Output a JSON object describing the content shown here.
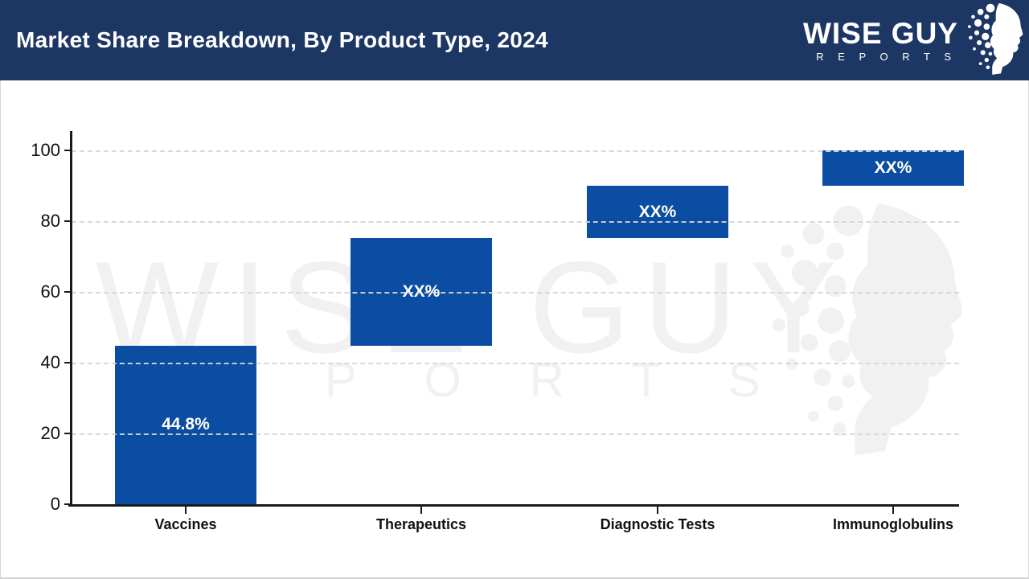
{
  "header": {
    "title": "Market Share Breakdown, By Product Type, 2024",
    "logo": {
      "line1": "WISE GUY",
      "line2": "R E P O R T S"
    }
  },
  "watermark": {
    "line1": "WISE GUY",
    "line2": "R E P O R T S"
  },
  "chart_data": {
    "type": "bar",
    "subtype": "waterfall",
    "title": "Market Share Breakdown, By Product Type, 2024",
    "categories": [
      "Vaccines",
      "Therapeutics",
      "Diagnostic Tests",
      "Immunoglobulins"
    ],
    "segments": [
      [
        0,
        44.8
      ],
      [
        44.8,
        75.2
      ],
      [
        75.2,
        90.0
      ],
      [
        90.0,
        100.0
      ]
    ],
    "bar_labels": [
      "44.8%",
      "XX%",
      "XX%",
      "XX%"
    ],
    "y_ticks": [
      0,
      20,
      40,
      60,
      80,
      100
    ],
    "ylim": [
      0,
      105
    ],
    "xlabel": "",
    "ylabel": "",
    "grid": "horizontal-dashed",
    "legend": "none",
    "bar_color": "#0b4da2",
    "bar_label_color": "#ffffff"
  },
  "colors": {
    "header_bg": "#1d3765",
    "bar": "#0b4da2",
    "watermark": "#f1f1f1",
    "axis": "#1a1a1a",
    "grid": "#d6d6d6"
  }
}
